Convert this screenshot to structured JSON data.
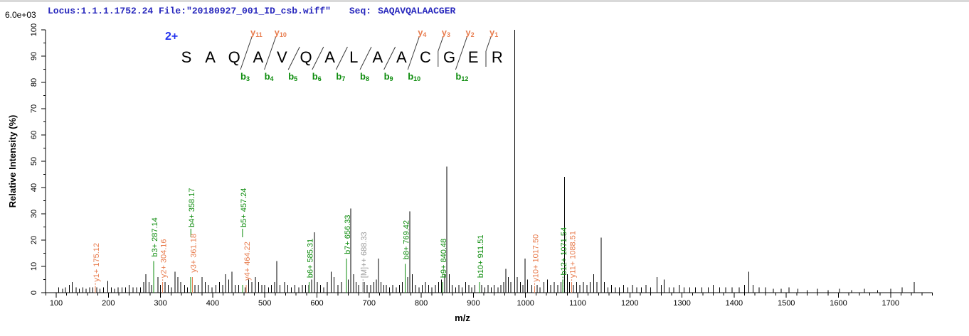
{
  "header": {
    "locus_text": "Locus:1.1.1.1752.24 File:\"20180927_001_ID_csb.wiff\"",
    "seq_label": "Seq:",
    "sequence": "SAQAVQALAACGER",
    "intensity_scale": "6.0e+03"
  },
  "colors": {
    "b_ion": "#0d8c0d",
    "y_ion": "#e87d4f",
    "precursor": "#9c9c9c",
    "peak_black": "#000000",
    "axis": "#000000",
    "header_blue": "#2727bd",
    "charge_blue": "#2433ee",
    "slash": "#3a3a3a"
  },
  "chart_data": {
    "type": "bar",
    "subtype": "ms2-fragmentation-spectrum",
    "title": "",
    "xlabel": "m/z",
    "ylabel": "Relative  Intensity (%)",
    "xlim": [
      80,
      1780
    ],
    "ylim": [
      0,
      100
    ],
    "x_ticks": {
      "label_start": 100,
      "label_end": 1700,
      "major_step": 100,
      "minor_step": 20
    },
    "y_ticks": {
      "label_start": 0,
      "label_end": 100,
      "major_step": 10,
      "minor_step": 5
    },
    "grid": false,
    "precursor_charge_label": "2+",
    "sequence_annotation": {
      "residues": [
        "S",
        "A",
        "Q",
        "A",
        "V",
        "Q",
        "A",
        "L",
        "A",
        "A",
        "C",
        "G",
        "E",
        "R"
      ],
      "y_ion_marks": [
        {
          "ion": "y",
          "sub": "11",
          "gap": 3
        },
        {
          "ion": "y",
          "sub": "10",
          "gap": 4
        },
        {
          "ion": "y",
          "sub": "4",
          "gap": 10
        },
        {
          "ion": "y",
          "sub": "3",
          "gap": 11
        },
        {
          "ion": "y",
          "sub": "2",
          "gap": 12
        },
        {
          "ion": "y",
          "sub": "1",
          "gap": 13
        }
      ],
      "b_ion_marks": [
        {
          "ion": "b",
          "sub": "3",
          "gap": 3
        },
        {
          "ion": "b",
          "sub": "4",
          "gap": 4
        },
        {
          "ion": "b",
          "sub": "5",
          "gap": 5
        },
        {
          "ion": "b",
          "sub": "6",
          "gap": 6
        },
        {
          "ion": "b",
          "sub": "7",
          "gap": 7
        },
        {
          "ion": "b",
          "sub": "8",
          "gap": 8
        },
        {
          "ion": "b",
          "sub": "9",
          "gap": 9
        },
        {
          "ion": "b",
          "sub": "10",
          "gap": 10
        },
        {
          "ion": "b",
          "sub": "12",
          "gap": 12
        }
      ]
    },
    "labeled_peaks": [
      {
        "label": "y1+ 175.12",
        "mz": 175.12,
        "intensity_pct": 2.5,
        "ion": "y",
        "dashed": true
      },
      {
        "label": "b3+ 287.14",
        "mz": 287.14,
        "intensity_pct": 12,
        "ion": "b"
      },
      {
        "label": "y2+ 304.16",
        "mz": 304.16,
        "intensity_pct": 4,
        "ion": "y",
        "dashed": true
      },
      {
        "label": "b4+ 358.17",
        "mz": 358.17,
        "intensity_pct": 6,
        "ion": "b",
        "stacked": true
      },
      {
        "label": "y3+ 361.18",
        "mz": 361.18,
        "intensity_pct": 6,
        "ion": "y"
      },
      {
        "label": "b5+ 457.24",
        "mz": 457.24,
        "intensity_pct": 3,
        "ion": "b",
        "stacked": true
      },
      {
        "label": "y4+ 464.22",
        "mz": 464.22,
        "intensity_pct": 3,
        "ion": "y"
      },
      {
        "label": "b6+ 585.31",
        "mz": 585.31,
        "intensity_pct": 4,
        "ion": "b"
      },
      {
        "label": "b7+ 656.33",
        "mz": 656.33,
        "intensity_pct": 13,
        "ion": "b"
      },
      {
        "label": "[M]++ 688.33",
        "mz": 688.33,
        "intensity_pct": 4,
        "ion": "M",
        "dashed": true
      },
      {
        "label": "b8+ 769.42",
        "mz": 769.42,
        "intensity_pct": 11,
        "ion": "b"
      },
      {
        "label": "b9+ 840.48",
        "mz": 840.48,
        "intensity_pct": 4,
        "ion": "b"
      },
      {
        "label": "b10+ 911.51",
        "mz": 911.51,
        "intensity_pct": 4,
        "ion": "b"
      },
      {
        "label": "y10+ 1017.50",
        "mz": 1017.5,
        "intensity_pct": 2.5,
        "ion": "y",
        "dashed": true
      },
      {
        "label": "b12+ 1071.54",
        "mz": 1071.54,
        "intensity_pct": 5,
        "ion": "b",
        "dashed": true
      },
      {
        "label": "y11+ 1088.51",
        "mz": 1088.51,
        "intensity_pct": 4,
        "ion": "y",
        "dashed": true
      }
    ],
    "background_peaks": [
      [
        105,
        2
      ],
      [
        112,
        1.5
      ],
      [
        118,
        2
      ],
      [
        125,
        3
      ],
      [
        131,
        4
      ],
      [
        138,
        2
      ],
      [
        144,
        1.5
      ],
      [
        151,
        2
      ],
      [
        157,
        1.5
      ],
      [
        164,
        2
      ],
      [
        170,
        2
      ],
      [
        178,
        2
      ],
      [
        184,
        1.5
      ],
      [
        191,
        2
      ],
      [
        199,
        4.5
      ],
      [
        206,
        2
      ],
      [
        212,
        1.5
      ],
      [
        219,
        2
      ],
      [
        226,
        2
      ],
      [
        233,
        2
      ],
      [
        240,
        3
      ],
      [
        247,
        2
      ],
      [
        254,
        2
      ],
      [
        262,
        2
      ],
      [
        268,
        4
      ],
      [
        272,
        7
      ],
      [
        278,
        4
      ],
      [
        283,
        3
      ],
      [
        295,
        6
      ],
      [
        300,
        3
      ],
      [
        309,
        4
      ],
      [
        315,
        3
      ],
      [
        321,
        2
      ],
      [
        328,
        8
      ],
      [
        333,
        6
      ],
      [
        339,
        4
      ],
      [
        346,
        3
      ],
      [
        352,
        2
      ],
      [
        366,
        3
      ],
      [
        372,
        3
      ],
      [
        380,
        6
      ],
      [
        386,
        4
      ],
      [
        392,
        3
      ],
      [
        399,
        2
      ],
      [
        406,
        3
      ],
      [
        413,
        4
      ],
      [
        419,
        3
      ],
      [
        425,
        7
      ],
      [
        431,
        5
      ],
      [
        437,
        8
      ],
      [
        443,
        3
      ],
      [
        450,
        3
      ],
      [
        462,
        2
      ],
      [
        469,
        5
      ],
      [
        475,
        4
      ],
      [
        482,
        6
      ],
      [
        488,
        4
      ],
      [
        494,
        3
      ],
      [
        500,
        3
      ],
      [
        507,
        2
      ],
      [
        513,
        3
      ],
      [
        519,
        4
      ],
      [
        523,
        12
      ],
      [
        529,
        3
      ],
      [
        538,
        4
      ],
      [
        544,
        3
      ],
      [
        551,
        2
      ],
      [
        558,
        3
      ],
      [
        565,
        2
      ],
      [
        572,
        3
      ],
      [
        578,
        3
      ],
      [
        584,
        3
      ],
      [
        590,
        5
      ],
      [
        595,
        23
      ],
      [
        601,
        4
      ],
      [
        607,
        3
      ],
      [
        613,
        2
      ],
      [
        620,
        4
      ],
      [
        627,
        8
      ],
      [
        633,
        6
      ],
      [
        640,
        3
      ],
      [
        647,
        4
      ],
      [
        660,
        5
      ],
      [
        665,
        32
      ],
      [
        670,
        7
      ],
      [
        675,
        4
      ],
      [
        680,
        3
      ],
      [
        691,
        4
      ],
      [
        696,
        3
      ],
      [
        703,
        3
      ],
      [
        709,
        4
      ],
      [
        714,
        5
      ],
      [
        718,
        13
      ],
      [
        723,
        4
      ],
      [
        728,
        3
      ],
      [
        733,
        3
      ],
      [
        739,
        2
      ],
      [
        745,
        3
      ],
      [
        752,
        2
      ],
      [
        758,
        3
      ],
      [
        764,
        4
      ],
      [
        774,
        6
      ],
      [
        778,
        31
      ],
      [
        783,
        7
      ],
      [
        789,
        3
      ],
      [
        796,
        2
      ],
      [
        802,
        3
      ],
      [
        808,
        4
      ],
      [
        814,
        3
      ],
      [
        820,
        2
      ],
      [
        827,
        3
      ],
      [
        833,
        4
      ],
      [
        839,
        5
      ],
      [
        845,
        7
      ],
      [
        849,
        48
      ],
      [
        854,
        7
      ],
      [
        859,
        3
      ],
      [
        866,
        2
      ],
      [
        872,
        3
      ],
      [
        878,
        2
      ],
      [
        885,
        4
      ],
      [
        891,
        3
      ],
      [
        897,
        2
      ],
      [
        903,
        3
      ],
      [
        916,
        3
      ],
      [
        922,
        2
      ],
      [
        928,
        3
      ],
      [
        934,
        2
      ],
      [
        940,
        3
      ],
      [
        947,
        2
      ],
      [
        953,
        3
      ],
      [
        958,
        4
      ],
      [
        962,
        9
      ],
      [
        967,
        6
      ],
      [
        972,
        4
      ],
      [
        979,
        100
      ],
      [
        984,
        6
      ],
      [
        990,
        4
      ],
      [
        995,
        3
      ],
      [
        999,
        13
      ],
      [
        1004,
        5
      ],
      [
        1012,
        3
      ],
      [
        1022,
        3
      ],
      [
        1028,
        2
      ],
      [
        1035,
        4
      ],
      [
        1042,
        5
      ],
      [
        1048,
        3
      ],
      [
        1055,
        4
      ],
      [
        1062,
        3
      ],
      [
        1068,
        4
      ],
      [
        1075,
        44
      ],
      [
        1080,
        7
      ],
      [
        1084,
        4
      ],
      [
        1092,
        3
      ],
      [
        1098,
        4
      ],
      [
        1104,
        3
      ],
      [
        1111,
        4
      ],
      [
        1118,
        3
      ],
      [
        1124,
        4
      ],
      [
        1131,
        7
      ],
      [
        1137,
        4
      ],
      [
        1145,
        21
      ],
      [
        1151,
        4
      ],
      [
        1158,
        2
      ],
      [
        1165,
        3
      ],
      [
        1172,
        2
      ],
      [
        1180,
        2
      ],
      [
        1188,
        3
      ],
      [
        1196,
        2
      ],
      [
        1205,
        3
      ],
      [
        1213,
        2
      ],
      [
        1222,
        2
      ],
      [
        1231,
        3
      ],
      [
        1240,
        2
      ],
      [
        1252,
        6
      ],
      [
        1260,
        3
      ],
      [
        1266,
        5
      ],
      [
        1275,
        2
      ],
      [
        1284,
        2
      ],
      [
        1295,
        3
      ],
      [
        1304,
        2
      ],
      [
        1315,
        2
      ],
      [
        1326,
        2
      ],
      [
        1338,
        2
      ],
      [
        1350,
        2
      ],
      [
        1360,
        3
      ],
      [
        1372,
        2
      ],
      [
        1384,
        2
      ],
      [
        1396,
        2
      ],
      [
        1410,
        2
      ],
      [
        1420,
        3
      ],
      [
        1428,
        8
      ],
      [
        1436,
        3
      ],
      [
        1448,
        2
      ],
      [
        1460,
        2
      ],
      [
        1475,
        1.5
      ],
      [
        1490,
        1.5
      ],
      [
        1505,
        2
      ],
      [
        1522,
        1.5
      ],
      [
        1540,
        1
      ],
      [
        1560,
        1.5
      ],
      [
        1580,
        1
      ],
      [
        1602,
        1.5
      ],
      [
        1625,
        1
      ],
      [
        1650,
        1.5
      ],
      [
        1675,
        1
      ],
      [
        1700,
        1.5
      ],
      [
        1722,
        2
      ],
      [
        1745,
        4
      ]
    ]
  }
}
